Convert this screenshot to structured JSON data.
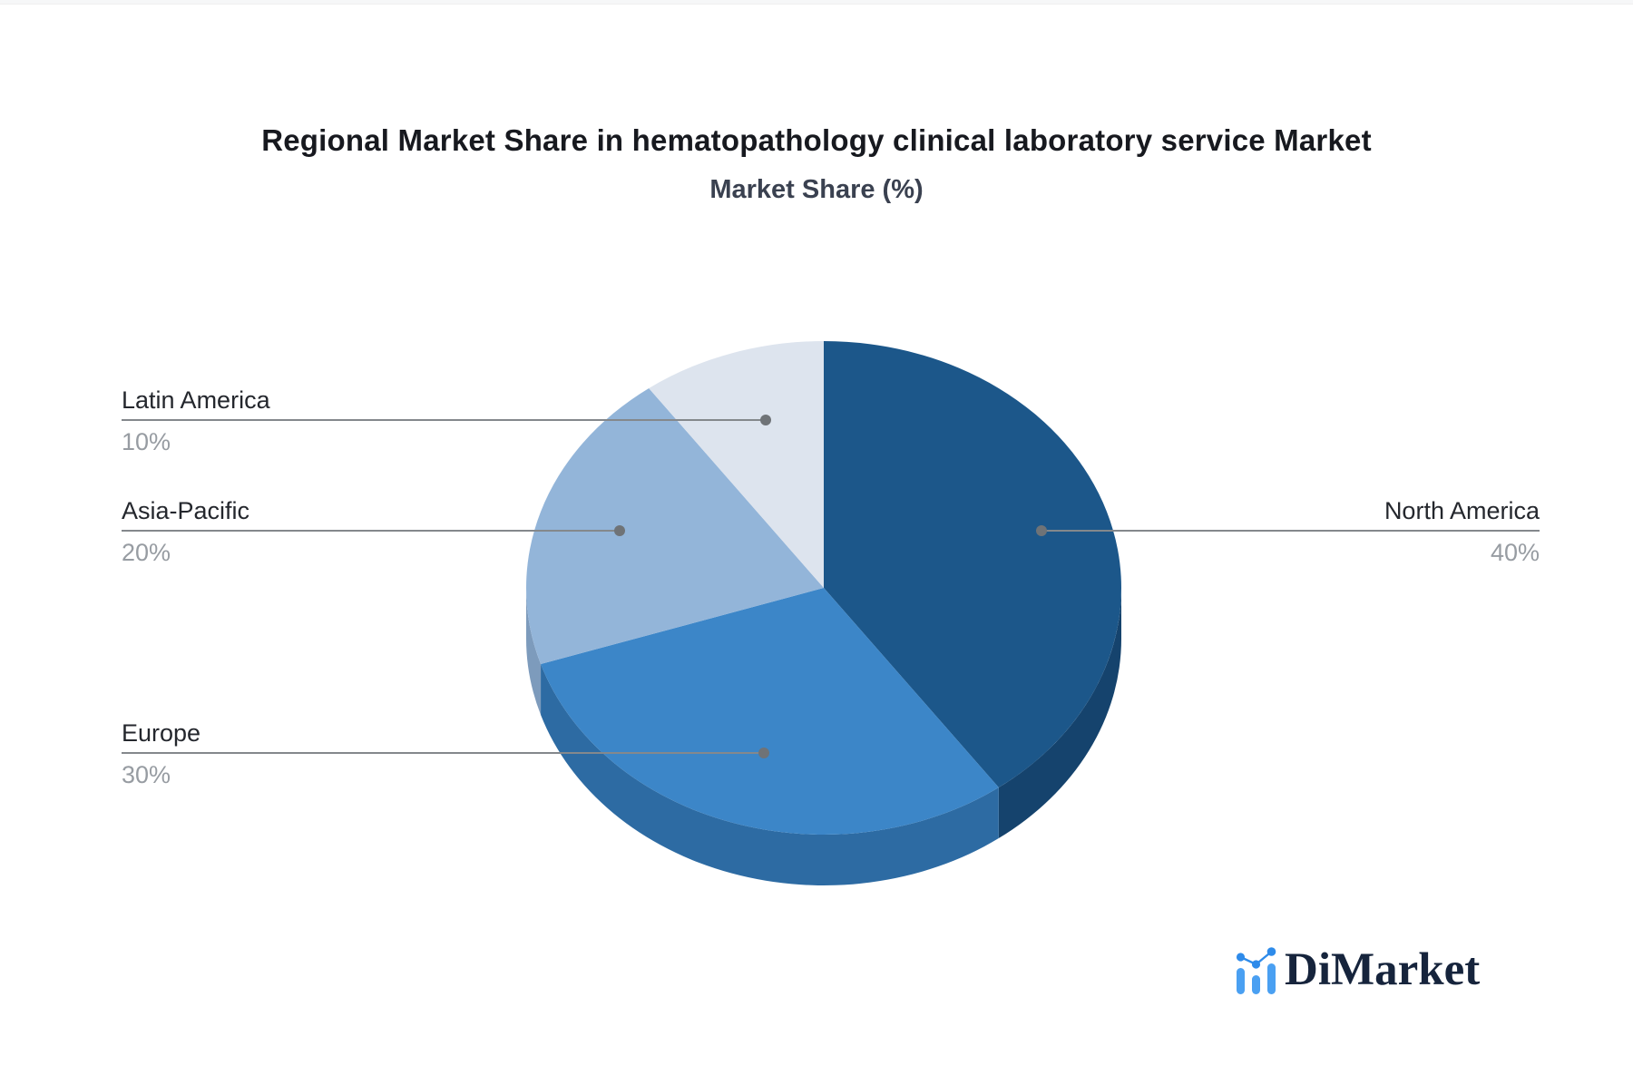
{
  "title": "Regional Market Share in hematopathology clinical laboratory service Market",
  "subtitle": "Market Share (%)",
  "brand": {
    "name": "DiMarket",
    "icon": "bar-line-chart-icon",
    "icon_bar_color": "#4aa0f2",
    "icon_dot_color": "#2e8bea",
    "text_color": "#16243c"
  },
  "palette": {
    "background": "#ffffff",
    "title_color": "#17191f",
    "subtitle_color": "#3a4150",
    "label_color": "#24272d",
    "pct_color": "#979ca2",
    "leader_line_color": "#84888c",
    "leader_dot_color": "#6f7377"
  },
  "chart_data": {
    "type": "pie",
    "title": "Regional Market Share in hematopathology clinical laboratory service Market",
    "subtitle": "Market Share (%)",
    "unit": "%",
    "effect": "3d-extruded",
    "start_angle_deg": 0,
    "direction": "clockwise",
    "legend_position": "none",
    "labels_style": "leader-lines",
    "slices": [
      {
        "label": "North America",
        "value": 40,
        "pct_label": "40%",
        "color": "#1c578a",
        "side_color": "#15436d",
        "label_side": "right"
      },
      {
        "label": "Europe",
        "value": 30,
        "pct_label": "30%",
        "color": "#3c86c8",
        "side_color": "#2d6ba3",
        "label_side": "left"
      },
      {
        "label": "Asia-Pacific",
        "value": 20,
        "pct_label": "20%",
        "color": "#93b5d9",
        "side_color": "#7d9bbc",
        "label_side": "left"
      },
      {
        "label": "Latin America",
        "value": 10,
        "pct_label": "10%",
        "color": "#dde4ee",
        "side_color": "#c3cdda",
        "label_side": "left"
      }
    ]
  }
}
